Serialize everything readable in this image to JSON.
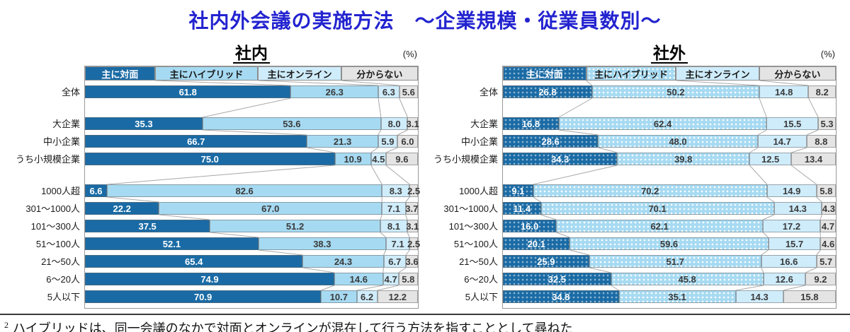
{
  "page": {
    "title": "社内外会議の実施方法　～企業規模・従業員数別～",
    "footnote": {
      "sup": "2",
      "text": "ハイブリッドは、同一会議のなかで対面とオンラインが混在して行う方法を指すこととして尋ねた"
    }
  },
  "colors": {
    "title": "#2323d0",
    "face": "#1a6ba5",
    "hybrid": "#a6daf2",
    "online": "#cfecfb",
    "unknown": "#e4e4e4",
    "connector": "#a8a8a8"
  },
  "chart_data": [
    {
      "type": "bar",
      "orientation": "horizontal-stacked",
      "title": "社内",
      "unit_label": "(%)",
      "xlim": [
        0,
        100
      ],
      "legend_position": "top",
      "patterned": false,
      "legend_widths_pct": [
        21,
        31,
        25,
        23
      ],
      "categories": [
        "全体",
        "大企業",
        "中小企業",
        "うち小規模企業",
        "1000人超",
        "301～1000人",
        "101～300人",
        "51～100人",
        "21～50人",
        "6～20人",
        "5人以下"
      ],
      "group_breaks_after": [
        0,
        3
      ],
      "series": [
        {
          "name": "主に対面",
          "values": [
            61.8,
            35.3,
            66.7,
            75.0,
            6.6,
            22.2,
            37.5,
            52.1,
            65.4,
            74.9,
            70.9
          ]
        },
        {
          "name": "主にハイブリッド",
          "values": [
            26.3,
            53.6,
            21.3,
            10.9,
            82.6,
            67.0,
            51.2,
            38.3,
            24.3,
            14.6,
            10.7
          ]
        },
        {
          "name": "主にオンライン",
          "values": [
            6.3,
            8.0,
            5.9,
            4.5,
            8.3,
            7.1,
            8.1,
            7.1,
            6.7,
            4.7,
            6.2
          ]
        },
        {
          "name": "分からない",
          "values": [
            5.6,
            3.1,
            6.0,
            9.6,
            2.5,
            3.7,
            3.1,
            2.5,
            3.6,
            5.8,
            12.2
          ]
        }
      ]
    },
    {
      "type": "bar",
      "orientation": "horizontal-stacked",
      "title": "社外",
      "unit_label": "(%)",
      "xlim": [
        0,
        100
      ],
      "legend_position": "top",
      "patterned": true,
      "legend_widths_pct": [
        25,
        27,
        25,
        23
      ],
      "categories": [
        "全体",
        "大企業",
        "中小企業",
        "うち小規模企業",
        "1000人超",
        "301～1000人",
        "101～300人",
        "51～100人",
        "21～50人",
        "6～20人",
        "5人以下"
      ],
      "group_breaks_after": [
        0,
        3
      ],
      "series": [
        {
          "name": "主に対面",
          "values": [
            26.8,
            16.8,
            28.6,
            34.3,
            9.1,
            11.4,
            16.0,
            20.1,
            25.9,
            32.5,
            34.8
          ]
        },
        {
          "name": "主にハイブリッド",
          "values": [
            50.2,
            62.4,
            48.0,
            39.8,
            70.2,
            70.1,
            62.1,
            59.6,
            51.7,
            45.8,
            35.1
          ]
        },
        {
          "name": "主にオンライン",
          "values": [
            14.8,
            15.5,
            14.7,
            12.5,
            14.9,
            14.3,
            17.2,
            15.7,
            16.6,
            12.6,
            14.3
          ]
        },
        {
          "name": "分からない",
          "values": [
            8.2,
            5.3,
            8.8,
            13.4,
            5.8,
            4.3,
            4.7,
            4.6,
            5.7,
            9.2,
            15.8
          ]
        }
      ]
    }
  ]
}
